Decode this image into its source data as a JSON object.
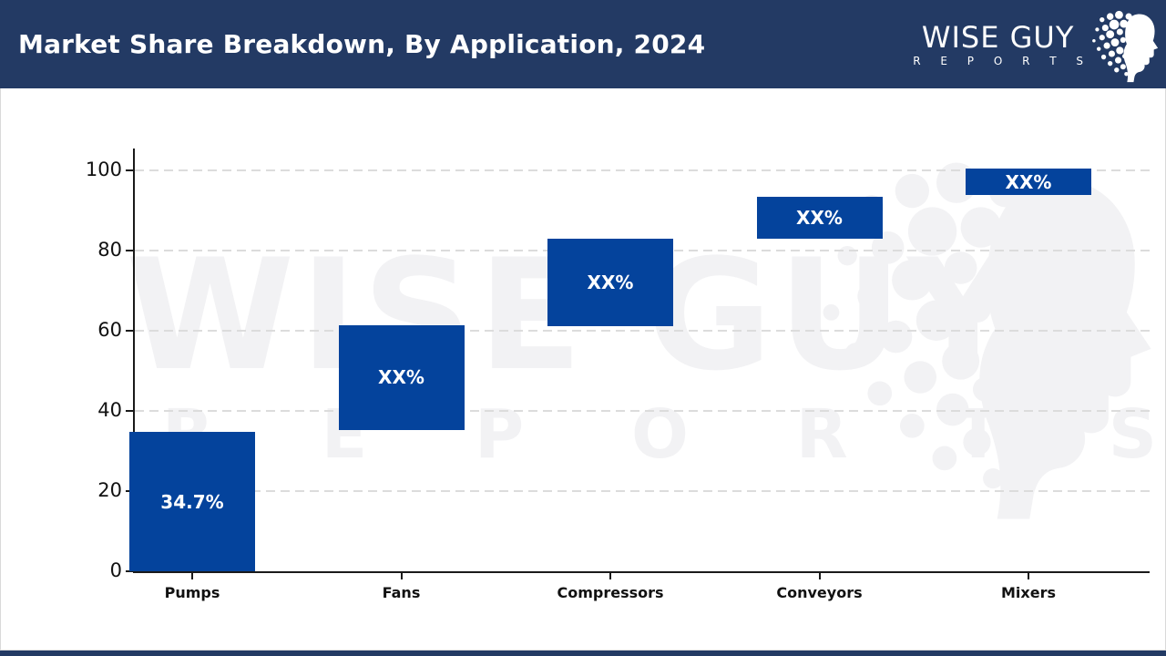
{
  "header": {
    "title": "Market Share Breakdown, By Application, 2024",
    "logo": {
      "line1": "WISE GUY",
      "line2": "R E P O R T S"
    }
  },
  "watermark": {
    "line1": "WISE GUY",
    "line2": "R E P O R T S"
  },
  "colors": {
    "header_bg": "#233a64",
    "footer_bg": "#233a64",
    "bar": "#04439c",
    "bar_label": "#ffffff",
    "axis": "#1a1a1a",
    "grid": "#dcdcdc",
    "tick_label": "#111111",
    "watermark": "#f2f2f4"
  },
  "chart_data": {
    "type": "bar",
    "subtype": "waterfall",
    "title": "Market Share Breakdown, By Application, 2024",
    "categories": [
      "Pumps",
      "Fans",
      "Compressors",
      "Conveyors",
      "Mixers"
    ],
    "segments": [
      {
        "category": "Pumps",
        "start": 0,
        "end": 34.7,
        "label": "34.7%"
      },
      {
        "category": "Fans",
        "start": 35.2,
        "end": 61.4,
        "label": "XX%"
      },
      {
        "category": "Compressors",
        "start": 61.1,
        "end": 83.0,
        "label": "XX%"
      },
      {
        "category": "Conveyors",
        "start": 82.9,
        "end": 93.3,
        "label": "XX%"
      },
      {
        "category": "Mixers",
        "start": 93.8,
        "end": 100.4,
        "label": "XX%"
      }
    ],
    "xlabel": "",
    "ylabel": "",
    "ylim": [
      0,
      100
    ],
    "yticks": [
      0,
      20,
      40,
      60,
      80,
      100
    ],
    "grid": "horizontal-dashed",
    "legend": "none",
    "bar_value_labels_inside": true
  }
}
